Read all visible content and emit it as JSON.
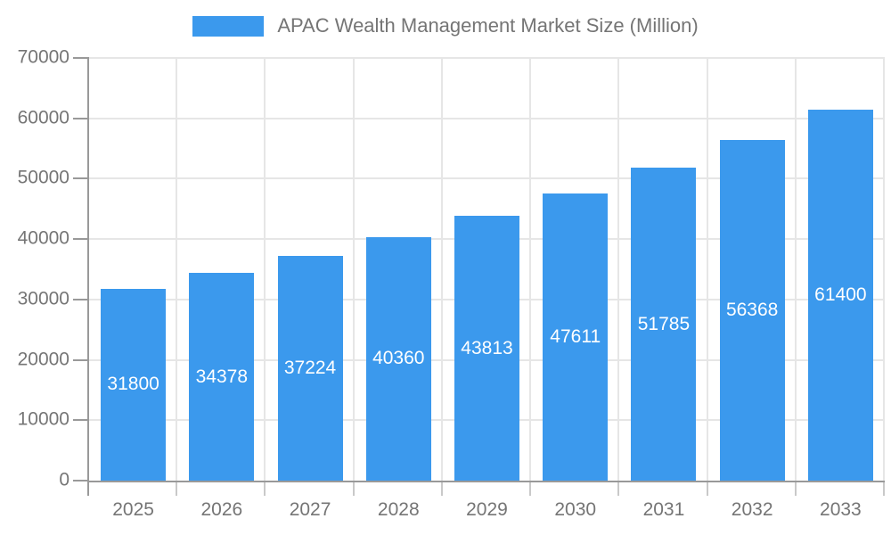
{
  "chart_data": {
    "type": "bar",
    "title": "APAC Wealth Management Market Size (Million)",
    "categories": [
      "2025",
      "2026",
      "2027",
      "2028",
      "2029",
      "2030",
      "2031",
      "2032",
      "2033"
    ],
    "values": [
      31800,
      34378,
      37224,
      40360,
      43813,
      47611,
      51785,
      56368,
      61400
    ],
    "bar_labels": [
      "31800",
      "34378",
      "37224",
      "40360",
      "43813",
      "47611",
      "51785",
      "56368",
      "61400"
    ],
    "xlabel": "",
    "ylabel": "",
    "ylim": [
      0,
      70000
    ],
    "yticks": [
      0,
      10000,
      20000,
      30000,
      40000,
      50000,
      60000,
      70000
    ],
    "ytick_labels": [
      "0",
      "10000",
      "20000",
      "30000",
      "40000",
      "50000",
      "60000",
      "70000"
    ],
    "grid": true,
    "legend_position": "top",
    "colors": {
      "bar": "#3B99ED",
      "bar_label": "#FFFFFF",
      "text": "#757575",
      "grid": "#E6E6E6",
      "axis": "#999999",
      "tick": "#C9C9C9",
      "background": "#FFFFFF"
    }
  }
}
